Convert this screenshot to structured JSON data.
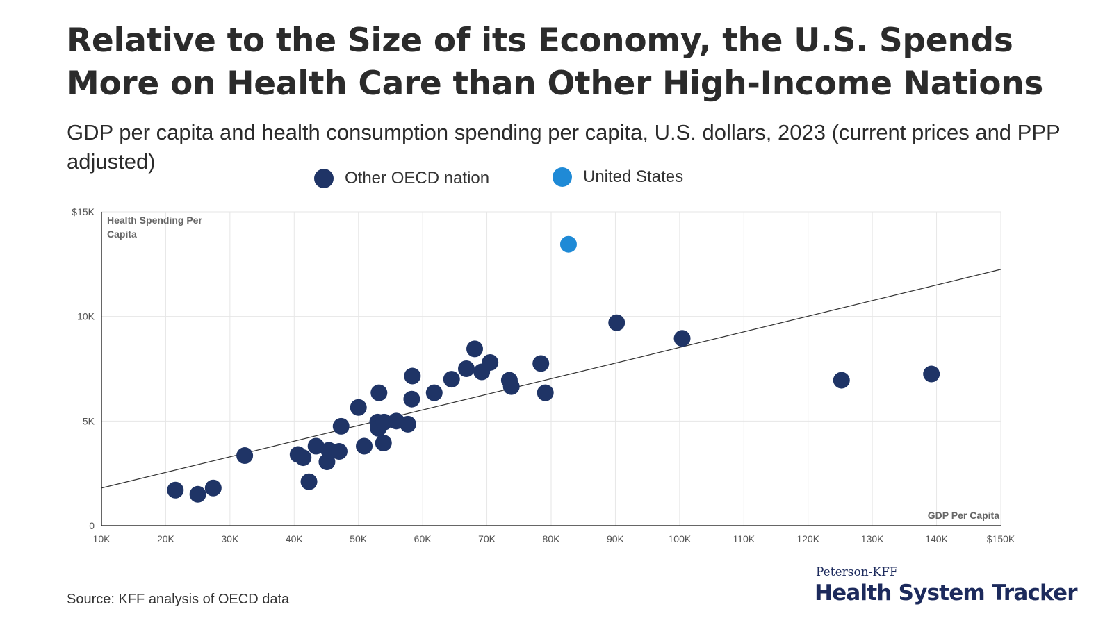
{
  "title": "Relative to the Size of its Economy, the U.S. Spends More on Health Care than Other High-Income Nations",
  "subtitle": "GDP per capita and health consumption spending per capita, U.S. dollars, 2023 (current prices and PPP adjusted)",
  "legend": [
    {
      "label": "Other OECD nation",
      "color": "#1f3466"
    },
    {
      "label": "United States",
      "color": "#1f8ad6"
    }
  ],
  "source": "Source: KFF analysis of OECD data",
  "brand": {
    "top": "Peterson-KFF",
    "main": "Health System Tracker"
  },
  "chart_data": {
    "type": "scatter",
    "ylabel": "Health Spending Per Capita",
    "xlabel": "GDP Per Capita",
    "xlim": [
      10000,
      150000
    ],
    "ylim": [
      0,
      15000
    ],
    "x_ticks": [
      {
        "value": 10000,
        "label": "10K"
      },
      {
        "value": 20000,
        "label": "20K"
      },
      {
        "value": 30000,
        "label": "30K"
      },
      {
        "value": 40000,
        "label": "40K"
      },
      {
        "value": 50000,
        "label": "50K"
      },
      {
        "value": 60000,
        "label": "60K"
      },
      {
        "value": 70000,
        "label": "70K"
      },
      {
        "value": 80000,
        "label": "80K"
      },
      {
        "value": 90000,
        "label": "90K"
      },
      {
        "value": 100000,
        "label": "100K"
      },
      {
        "value": 110000,
        "label": "110K"
      },
      {
        "value": 120000,
        "label": "120K"
      },
      {
        "value": 130000,
        "label": "130K"
      },
      {
        "value": 140000,
        "label": "140K"
      },
      {
        "value": 150000,
        "label": "$150K"
      }
    ],
    "y_ticks": [
      {
        "value": 0,
        "label": "0"
      },
      {
        "value": 5000,
        "label": "5K"
      },
      {
        "value": 10000,
        "label": "10K"
      },
      {
        "value": 15000,
        "label": "$15K"
      }
    ],
    "grid": true,
    "trendline": {
      "x": [
        10000,
        150000
      ],
      "y": [
        1800,
        12250
      ],
      "color": "#333333"
    },
    "series": [
      {
        "name": "Other OECD nation",
        "color": "#1f3466",
        "points": [
          {
            "x": 21500,
            "y": 1700
          },
          {
            "x": 25000,
            "y": 1500
          },
          {
            "x": 27400,
            "y": 1800
          },
          {
            "x": 32300,
            "y": 3350
          },
          {
            "x": 40600,
            "y": 3400
          },
          {
            "x": 41400,
            "y": 3250
          },
          {
            "x": 42300,
            "y": 2100
          },
          {
            "x": 43400,
            "y": 3800
          },
          {
            "x": 45100,
            "y": 3050
          },
          {
            "x": 45400,
            "y": 3600
          },
          {
            "x": 47000,
            "y": 3550
          },
          {
            "x": 47300,
            "y": 4750
          },
          {
            "x": 50000,
            "y": 5650
          },
          {
            "x": 50900,
            "y": 3800
          },
          {
            "x": 53000,
            "y": 4950
          },
          {
            "x": 53100,
            "y": 4650
          },
          {
            "x": 53200,
            "y": 6350
          },
          {
            "x": 53900,
            "y": 3950
          },
          {
            "x": 54000,
            "y": 4950
          },
          {
            "x": 55900,
            "y": 5000
          },
          {
            "x": 57700,
            "y": 4850
          },
          {
            "x": 58300,
            "y": 6050
          },
          {
            "x": 58400,
            "y": 7150
          },
          {
            "x": 61800,
            "y": 6350
          },
          {
            "x": 64500,
            "y": 7000
          },
          {
            "x": 66800,
            "y": 7500
          },
          {
            "x": 68100,
            "y": 8450
          },
          {
            "x": 69200,
            "y": 7350
          },
          {
            "x": 70500,
            "y": 7800
          },
          {
            "x": 73500,
            "y": 6950
          },
          {
            "x": 73800,
            "y": 6650
          },
          {
            "x": 78400,
            "y": 7750
          },
          {
            "x": 79100,
            "y": 6350
          },
          {
            "x": 90200,
            "y": 9700
          },
          {
            "x": 100400,
            "y": 8950
          },
          {
            "x": 125200,
            "y": 6950
          },
          {
            "x": 139200,
            "y": 7250
          }
        ]
      },
      {
        "name": "United States",
        "color": "#1f8ad6",
        "points": [
          {
            "x": 82700,
            "y": 13450
          }
        ]
      }
    ]
  }
}
